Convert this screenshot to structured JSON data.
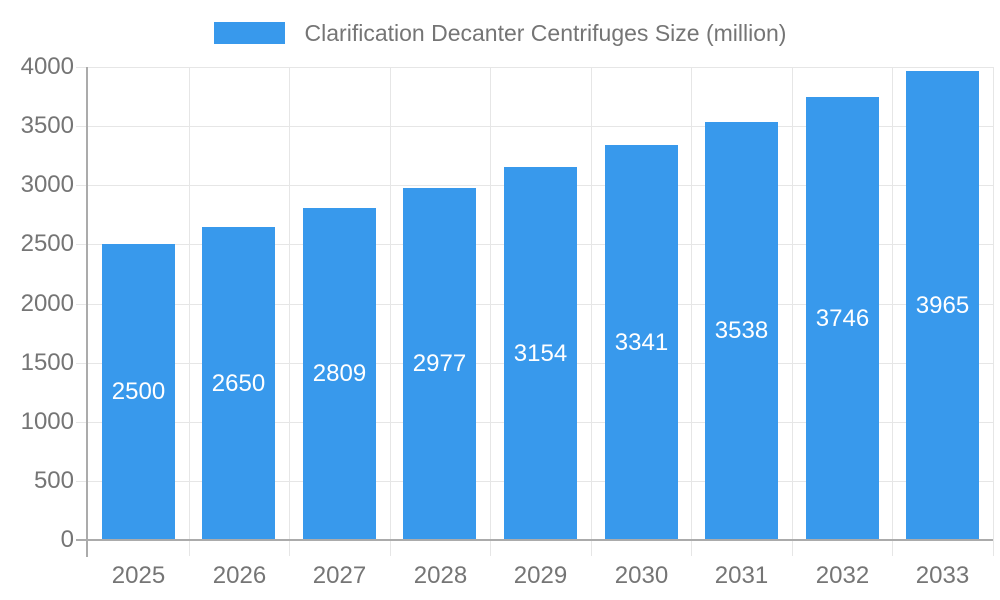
{
  "legend": {
    "label": "Clarification Decanter Centrifuges Size (million)"
  },
  "chart_data": {
    "type": "bar",
    "title": "Clarification Decanter Centrifuges Size (million)",
    "categories": [
      "2025",
      "2026",
      "2027",
      "2028",
      "2029",
      "2030",
      "2031",
      "2032",
      "2033"
    ],
    "series": [
      {
        "name": "Clarification Decanter Centrifuges Size (million)",
        "values": [
          2500,
          2650,
          2809,
          2977,
          3154,
          3341,
          3538,
          3746,
          3965
        ]
      }
    ],
    "data_labels": [
      "2500",
      "2650",
      "2809",
      "2977",
      "3154",
      "3341",
      "3538",
      "3746",
      "3965"
    ],
    "xlabel": "",
    "ylabel": "",
    "ylim": [
      0,
      4000
    ],
    "yticks": [
      0,
      500,
      1000,
      1500,
      2000,
      2500,
      3000,
      3500,
      4000
    ],
    "grid": true,
    "legend_position": "top-center"
  },
  "colors": {
    "bar": "#3899ec",
    "grid": "#e6e6e6",
    "axis": "#ababab",
    "tick_text": "#757575",
    "bar_label_text": "#ffffff",
    "background": "#ffffff"
  }
}
